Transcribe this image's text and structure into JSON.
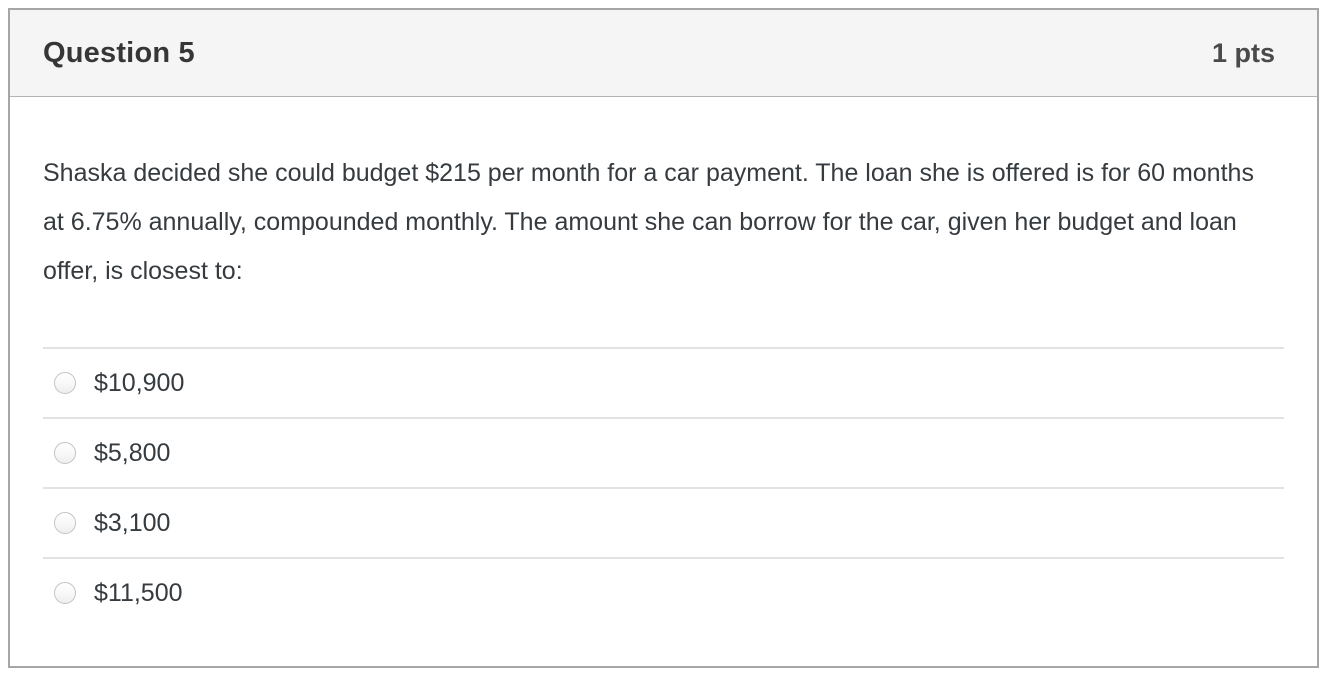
{
  "question": {
    "header": {
      "title": "Question 5",
      "points": "1 pts"
    },
    "body_text": "Shaska decided she could budget $215 per month for a car payment. The loan she is offered is for 60 months at 6.75% annually, compounded monthly. The amount she can borrow for the car, given her budget and loan offer, is closest to:",
    "options": [
      {
        "label": "$10,900",
        "selected": false
      },
      {
        "label": "$5,800",
        "selected": false
      },
      {
        "label": "$3,100",
        "selected": false
      },
      {
        "label": "$11,500",
        "selected": false
      }
    ]
  },
  "colors": {
    "card_border": "#a6a6a6",
    "header_background": "#f5f5f5",
    "header_border": "#b3b3b3",
    "divider": "#e2e2e2",
    "body_text": "#363b3f",
    "title_text": "#363636",
    "radio_border": "#c3c3c3"
  }
}
